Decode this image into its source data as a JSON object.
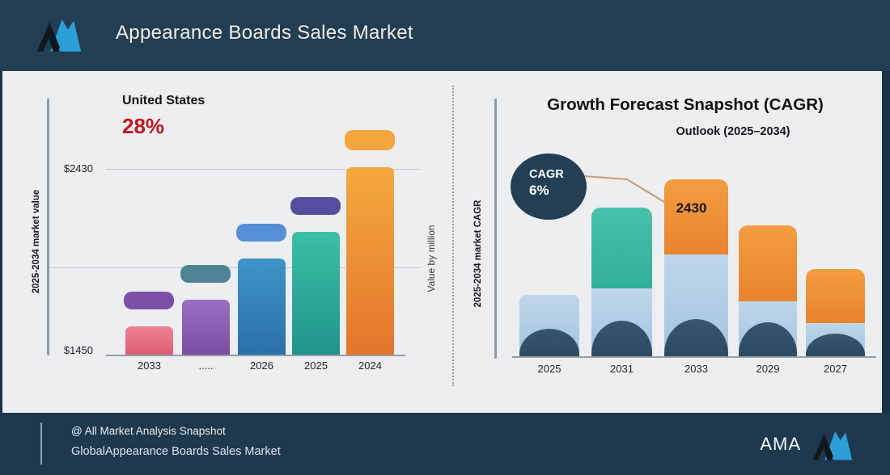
{
  "header": {
    "title": "Appearance Boards Sales Market"
  },
  "footer": {
    "line1": "@ All Market Analysis Snapshot",
    "line2": "GlobalAppearance Boards Sales Market",
    "brand": "AMA"
  },
  "colors": {
    "header_bg": "#213e53",
    "footer_bg": "#1e384e",
    "panel_bg": "#edeef0",
    "highlight_red": "#c1161f",
    "badge_navy": "#233f55",
    "connector_tan": "#c49a74",
    "logo_blue": "#2d9fd8",
    "logo_black": "#10181f"
  },
  "chart_data": [
    {
      "type": "bar",
      "title": "United States",
      "highlight": "28%",
      "ylabel": "2025-2034 market value",
      "axis_note": "Value by million",
      "y_ticks": [
        "$2430",
        "$1450"
      ],
      "ylim": [
        1450,
        2430
      ],
      "grid": true,
      "categories": [
        "2033",
        ".....",
        "2026",
        "2025",
        "2024"
      ],
      "values": [
        1590,
        1730,
        1950,
        2090,
        2430
      ],
      "bar_colors": [
        [
          "#ee8295",
          "#dc5f77"
        ],
        [
          "#9a6ec2",
          "#7b4da3"
        ],
        [
          "#3e94c8",
          "#2b6fa9"
        ],
        [
          "#3cc0a6",
          "#20948a"
        ],
        [
          "#f4a93e",
          "#e4752c"
        ]
      ],
      "marker_colors": [
        "#7d50a8",
        "#4e8495",
        "#578fd6",
        "#554e9e",
        "#f4a53d"
      ]
    },
    {
      "type": "stacked-bar",
      "title": "Growth Forecast Snapshot (CAGR)",
      "subtitle": "Outlook (2025–2034)",
      "ylabel": "2025-2034 market CAGR",
      "badge": {
        "label": "CAGR",
        "value": "6%"
      },
      "annotation": "2430",
      "annotation_category": "2033",
      "categories": [
        "2025",
        "2031",
        "2033",
        "2029",
        "2027"
      ],
      "series": [
        {
          "name": "base",
          "color_top": "#35566f",
          "color_bottom": "#2d4b63",
          "values": [
            34,
            44,
            46,
            42,
            28
          ]
        },
        {
          "name": "mid",
          "color_top": "#bfd6ea",
          "color_bottom": "#a3c4e0",
          "values": [
            42,
            40,
            80,
            26,
            13
          ]
        },
        {
          "name": "top",
          "colors_top": [
            "",
            "#49c2ab",
            "#f39d42",
            "#f39d42",
            "#f39d42"
          ],
          "colors_bottom": [
            "",
            "#2fae97",
            "#e8822e",
            "#e8822e",
            "#e8822e"
          ],
          "values": [
            0,
            100,
            93,
            94,
            67
          ]
        }
      ],
      "unit": "relative height"
    }
  ]
}
